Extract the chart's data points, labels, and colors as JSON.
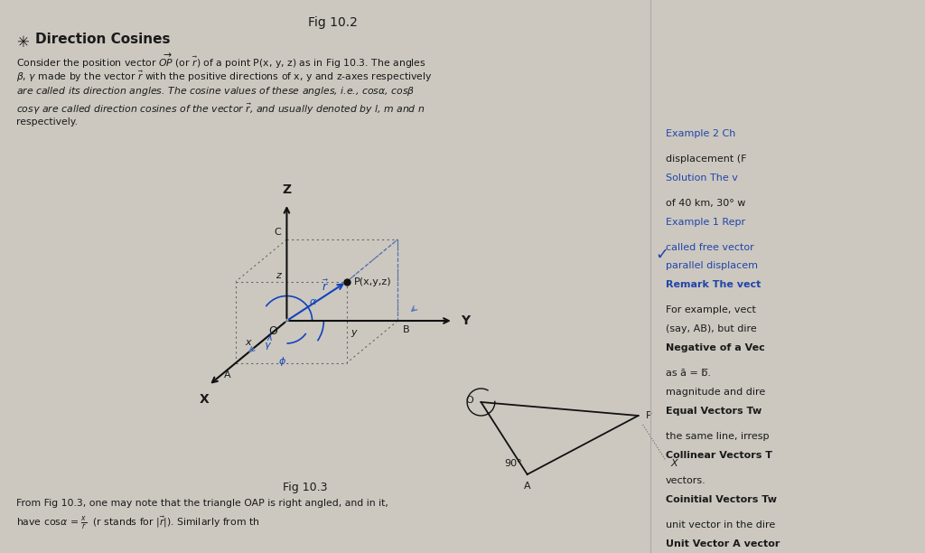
{
  "title": "Fig 10.2",
  "section_title": "Direction Cosines",
  "bg_color": "#ccc8c0",
  "text_color": "#1a1a1a",
  "fig_width": 10.24,
  "fig_height": 6.12,
  "right_panel_text": [
    {
      "text": "Unit Vector A vector",
      "bold": true,
      "color": "text"
    },
    {
      "text": "unit vector in the dire",
      "bold": false,
      "color": "text"
    },
    {
      "text": "",
      "bold": false,
      "color": "text"
    },
    {
      "text": "Coinitial Vectors Tw",
      "bold": true,
      "color": "text"
    },
    {
      "text": "vectors.",
      "bold": false,
      "color": "text"
    },
    {
      "text": "",
      "bold": false,
      "color": "text"
    },
    {
      "text": "Collinear Vectors T",
      "bold": true,
      "color": "text"
    },
    {
      "text": "the same line, irresp",
      "bold": false,
      "color": "text"
    },
    {
      "text": "",
      "bold": false,
      "color": "text"
    },
    {
      "text": "Equal Vectors Tw",
      "bold": true,
      "color": "text"
    },
    {
      "text": "magnitude and dire",
      "bold": false,
      "color": "text"
    },
    {
      "text": "as ā = b̅.",
      "bold": false,
      "color": "text"
    },
    {
      "text": "",
      "bold": false,
      "color": "text"
    },
    {
      "text": "Negative of a Vec",
      "bold": true,
      "color": "text"
    },
    {
      "text": "(say, AB), but dire",
      "bold": false,
      "color": "text"
    },
    {
      "text": "For example, vect",
      "bold": false,
      "color": "text"
    },
    {
      "text": "",
      "bold": false,
      "color": "text"
    },
    {
      "text": "Remark The vect",
      "bold": true,
      "color": "blue"
    },
    {
      "text": "parallel displacem",
      "bold": false,
      "color": "blue"
    },
    {
      "text": "called free vector",
      "bold": false,
      "color": "blue"
    },
    {
      "text": "",
      "bold": false,
      "color": "text"
    },
    {
      "text": "Example 1 Repr",
      "bold": false,
      "color": "blue"
    },
    {
      "text": "of 40 km, 30° w",
      "bold": false,
      "color": "text"
    },
    {
      "text": "",
      "bold": false,
      "color": "text"
    },
    {
      "text": "Solution The v",
      "bold": false,
      "color": "blue"
    },
    {
      "text": "displacement (F",
      "bold": false,
      "color": "text"
    },
    {
      "text": "",
      "bold": false,
      "color": "text"
    },
    {
      "text": "Example 2 Ch",
      "bold": false,
      "color": "blue"
    }
  ],
  "axis_color": "#111111",
  "vector_color": "#1144bb",
  "angle_color": "#1144bb",
  "dashed_color": "#666666",
  "point_color": "#111111",
  "blue_color": "#2244aa"
}
